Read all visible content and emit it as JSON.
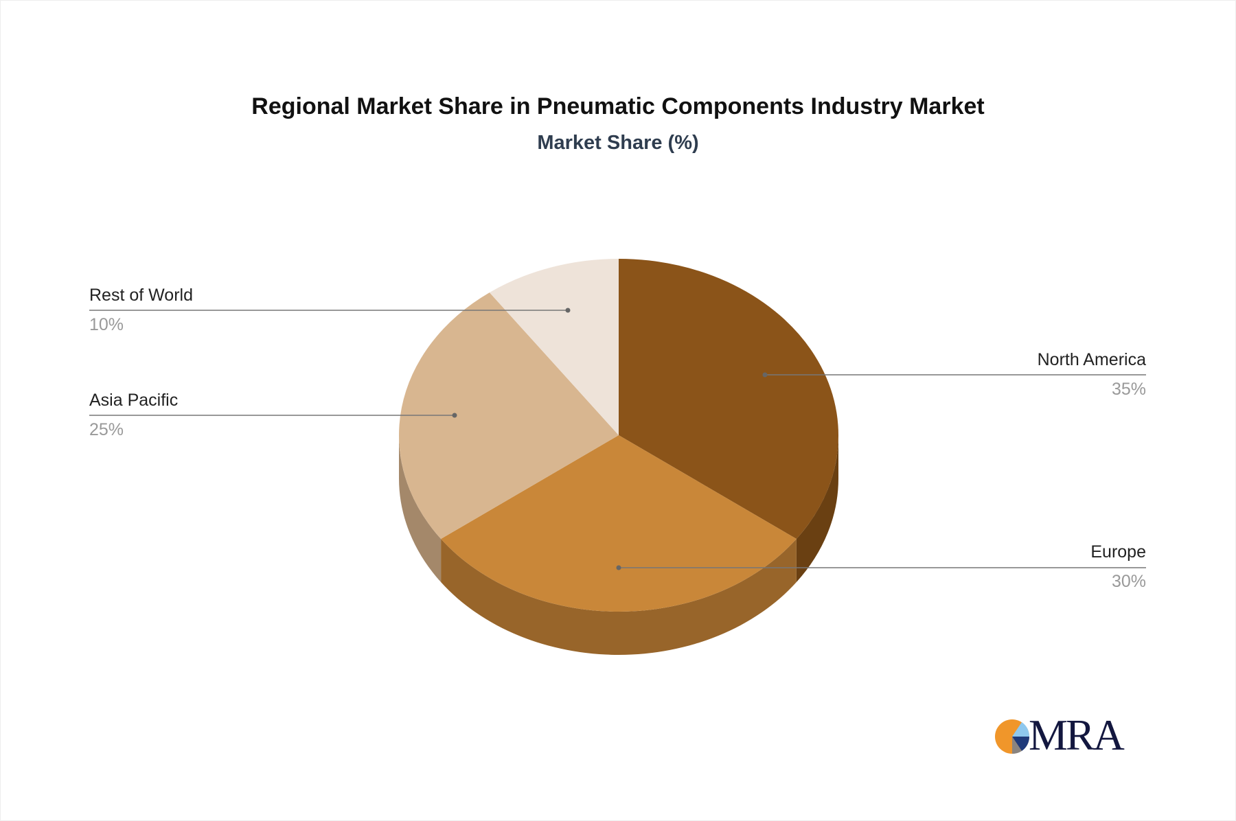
{
  "chart_data": {
    "type": "pie",
    "style": "3d",
    "title": "Regional Market Share in Pneumatic Components Industry Market",
    "subtitle": "Market Share (%)",
    "slices": [
      {
        "label": "North America",
        "value": 35,
        "display": "35%",
        "color": "#8B5419",
        "side_color": "#6A4012"
      },
      {
        "label": "Europe",
        "value": 30,
        "display": "30%",
        "color": "#C98739",
        "side_color": "#98652A"
      },
      {
        "label": "Asia Pacific",
        "value": 25,
        "display": "25%",
        "color": "#D8B690",
        "side_color": "#A4886A"
      },
      {
        "label": "Rest of World",
        "value": 10,
        "display": "10%",
        "color": "#EEE3D9",
        "side_color": "#BFB5AB"
      }
    ],
    "legend": "leader-line labels"
  },
  "logo": {
    "text": "MRA",
    "colors": [
      "#F0962A",
      "#1F3A7A",
      "#8FC8EE",
      "#8A8480"
    ]
  }
}
